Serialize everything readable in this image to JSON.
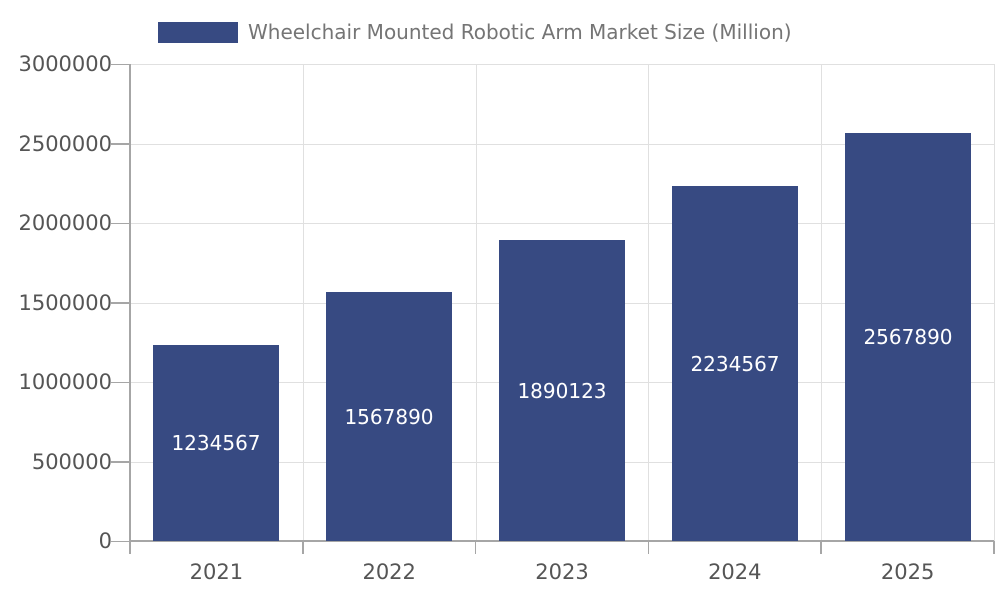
{
  "chart_data": {
    "type": "bar",
    "title": "Wheelchair Mounted Robotic Arm Market Size (Million)",
    "categories": [
      "2021",
      "2022",
      "2023",
      "2024",
      "2025"
    ],
    "values": [
      1234567,
      1567890,
      1890123,
      2234567,
      2567890
    ],
    "bar_value_labels": [
      "1234567",
      "1567890",
      "1890123",
      "2234567",
      "2567890"
    ],
    "ylim": [
      0,
      3000000
    ],
    "yticks": [
      0,
      500000,
      1000000,
      1500000,
      2000000,
      2500000,
      3000000
    ],
    "ytick_labels": [
      "0",
      "500000",
      "1000000",
      "1500000",
      "2000000",
      "2500000",
      "3000000"
    ],
    "grid": true,
    "legend_position": "top",
    "colors": {
      "bar": "#374a82",
      "bar_label": "#ffffff",
      "grid": "#e0e0e0",
      "axis": "#a6a6a6",
      "tick_label": "#555555",
      "title": "#757575"
    }
  }
}
